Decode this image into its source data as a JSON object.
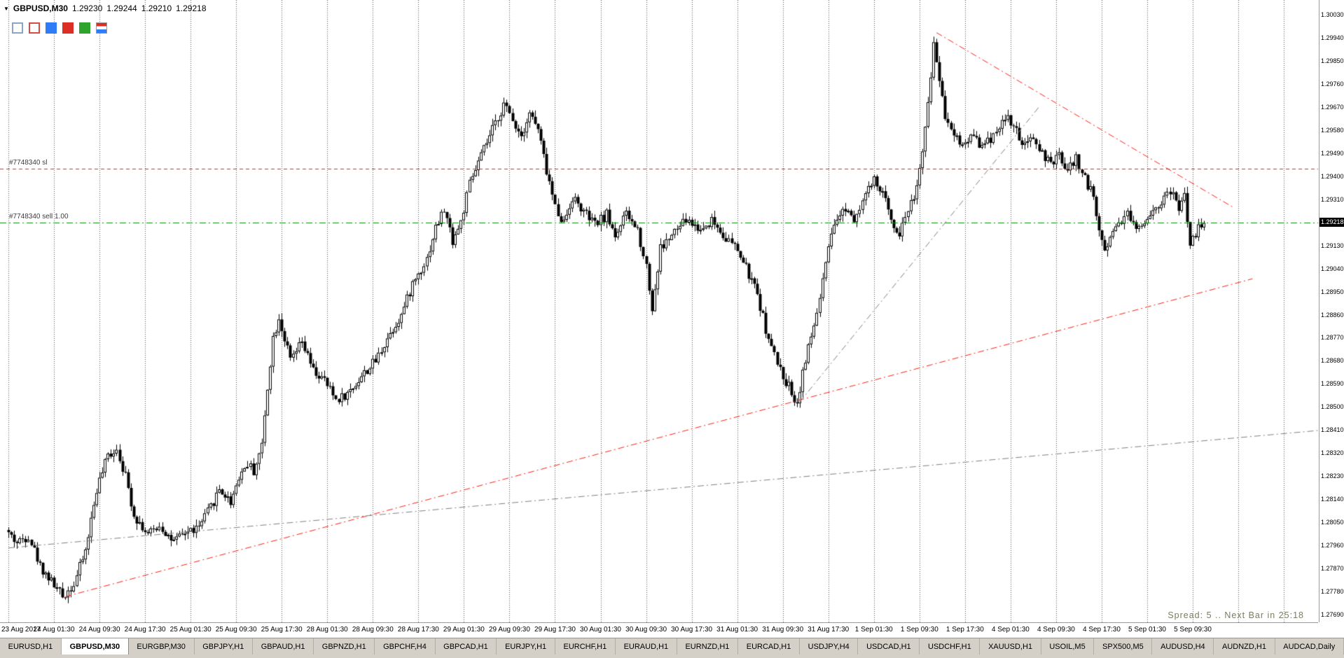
{
  "chart": {
    "menu_arrow": "▼",
    "title": {
      "symbol": "GBPUSD,M30",
      "open": "1.29230",
      "high": "1.29244",
      "low": "1.29210",
      "close": "1.29218"
    },
    "toolbar_swatches": [
      {
        "name": "white-outline-blue",
        "fill": "#ffffff",
        "border": "#8ba6c4"
      },
      {
        "name": "white-outline-red",
        "fill": "#ffffff",
        "border": "#d24d43"
      },
      {
        "name": "blue",
        "fill": "#2e7df6",
        "border": "#2e7df6"
      },
      {
        "name": "red",
        "fill": "#dd2e25",
        "border": "#dd2e25"
      },
      {
        "name": "green",
        "fill": "#2fa42c",
        "border": "#2fa42c"
      },
      {
        "name": "striped-flag",
        "stripes": [
          "#dd2e25",
          "#ffffff",
          "#2e7df6"
        ]
      }
    ]
  },
  "chart_data": {
    "type": "candlestick",
    "symbol": "GBPUSD",
    "timeframe": "M30",
    "ohlc": {
      "open": 1.2923,
      "high": 1.29244,
      "low": 1.2921,
      "close": 1.29218
    },
    "current_price": "1.29218",
    "last_close": 1.29218,
    "overlay_text": "Spread: 5 .. Next Bar in 25:18",
    "bars_per_tick": 16,
    "bar_count": 421,
    "y_axis": {
      "min": 1.2769,
      "max": 1.3003,
      "tick_step": 0.0009,
      "ticks": [
        "1.30030",
        "1.29940",
        "1.29850",
        "1.29760",
        "1.29670",
        "1.29580",
        "1.29490",
        "1.29400",
        "1.29310",
        "1.29220",
        "1.29130",
        "1.29040",
        "1.28950",
        "1.28860",
        "1.28770",
        "1.28680",
        "1.28590",
        "1.28500",
        "1.28410",
        "1.28320",
        "1.28230",
        "1.28140",
        "1.28050",
        "1.27960",
        "1.27870",
        "1.27780",
        "1.27690"
      ]
    },
    "x_ticks": [
      "23 Aug 2017",
      "24 Aug 01:30",
      "24 Aug 09:30",
      "24 Aug 17:30",
      "25 Aug 01:30",
      "25 Aug 09:30",
      "25 Aug 17:30",
      "28 Aug 01:30",
      "28 Aug 09:30",
      "28 Aug 17:30",
      "29 Aug 01:30",
      "29 Aug 09:30",
      "29 Aug 17:30",
      "30 Aug 01:30",
      "30 Aug 09:30",
      "30 Aug 17:30",
      "31 Aug 01:30",
      "31 Aug 09:30",
      "31 Aug 17:30",
      "1 Sep 01:30",
      "1 Sep 09:30",
      "1 Sep 17:30",
      "4 Sep 01:30",
      "4 Sep 09:30",
      "4 Sep 17:30",
      "5 Sep 01:30",
      "5 Sep 09:30"
    ],
    "order_lines": [
      {
        "label": "#7748340 sl",
        "price": 1.2943,
        "color": "#e02b20",
        "style": "dash"
      },
      {
        "label": "#7748340 sell 1.00",
        "price": 1.29218,
        "color": "#0a8a0a",
        "style": "dashdot"
      }
    ],
    "trendlines": [
      {
        "name": "ascending-support-red",
        "color": "#ff2015",
        "from": [
          20,
          1.2776
        ],
        "to": [
          437,
          1.29
        ],
        "style": "dashdot"
      },
      {
        "name": "descending-resistance-red",
        "color": "#ff2015",
        "from": [
          326,
          1.2996
        ],
        "to": [
          430,
          1.2928
        ],
        "style": "dashdot"
      },
      {
        "name": "ascending-gray-shallow",
        "color": "#7f7f7f",
        "from": [
          0,
          1.2795
        ],
        "to": [
          462,
          1.2841
        ],
        "style": "dashdot"
      },
      {
        "name": "ascending-gray-steep",
        "color": "#7f7f7f",
        "from": [
          278,
          1.2852
        ],
        "to": [
          362,
          1.2967
        ],
        "style": "dashdot"
      }
    ],
    "colors": {
      "bull": "#ffffff",
      "bear": "#000000",
      "outline": "#000000",
      "grid": "#555555",
      "background": "#ffffff"
    },
    "price_path_anchors": [
      [
        0,
        1.2802
      ],
      [
        4,
        1.2797
      ],
      [
        8,
        1.28
      ],
      [
        12,
        1.2788
      ],
      [
        16,
        1.2782
      ],
      [
        20,
        1.2776
      ],
      [
        24,
        1.2781
      ],
      [
        28,
        1.2794
      ],
      [
        32,
        1.2818
      ],
      [
        36,
        1.2831
      ],
      [
        39,
        1.2834
      ],
      [
        42,
        1.2823
      ],
      [
        45,
        1.2808
      ],
      [
        50,
        1.28
      ],
      [
        54,
        1.2804
      ],
      [
        59,
        1.2797
      ],
      [
        63,
        1.2801
      ],
      [
        68,
        1.2803
      ],
      [
        72,
        1.2811
      ],
      [
        75,
        1.2818
      ],
      [
        79,
        1.2813
      ],
      [
        82,
        1.2823
      ],
      [
        85,
        1.2828
      ],
      [
        87,
        1.2825
      ],
      [
        90,
        1.2835
      ],
      [
        92,
        1.2858
      ],
      [
        94,
        1.2877
      ],
      [
        96,
        1.2885
      ],
      [
        100,
        1.2868
      ],
      [
        104,
        1.2875
      ],
      [
        108,
        1.2864
      ],
      [
        112,
        1.286
      ],
      [
        116,
        1.2853
      ],
      [
        120,
        1.2855
      ],
      [
        125,
        1.2862
      ],
      [
        130,
        1.2868
      ],
      [
        134,
        1.2877
      ],
      [
        139,
        1.2886
      ],
      [
        143,
        1.2898
      ],
      [
        148,
        1.2908
      ],
      [
        151,
        1.292
      ],
      [
        154,
        1.2927
      ],
      [
        157,
        1.2915
      ],
      [
        160,
        1.2922
      ],
      [
        163,
        1.2937
      ],
      [
        167,
        1.2948
      ],
      [
        171,
        1.2958
      ],
      [
        175,
        1.2968
      ],
      [
        178,
        1.2962
      ],
      [
        181,
        1.2956
      ],
      [
        184,
        1.2965
      ],
      [
        187,
        1.2958
      ],
      [
        190,
        1.2942
      ],
      [
        193,
        1.2928
      ],
      [
        196,
        1.2922
      ],
      [
        199,
        1.2932
      ],
      [
        203,
        1.2926
      ],
      [
        207,
        1.2921
      ],
      [
        211,
        1.2925
      ],
      [
        214,
        1.2917
      ],
      [
        218,
        1.2925
      ],
      [
        222,
        1.2919
      ],
      [
        225,
        1.2905
      ],
      [
        227,
        1.2888
      ],
      [
        230,
        1.2912
      ],
      [
        235,
        1.2918
      ],
      [
        239,
        1.2923
      ],
      [
        244,
        1.2919
      ],
      [
        248,
        1.2923
      ],
      [
        253,
        1.2916
      ],
      [
        257,
        1.2911
      ],
      [
        260,
        1.2904
      ],
      [
        264,
        1.2894
      ],
      [
        268,
        1.2876
      ],
      [
        272,
        1.2864
      ],
      [
        276,
        1.2856
      ],
      [
        278,
        1.2851
      ],
      [
        280,
        1.2864
      ],
      [
        283,
        1.2877
      ],
      [
        286,
        1.2892
      ],
      [
        289,
        1.2912
      ],
      [
        292,
        1.2923
      ],
      [
        295,
        1.2928
      ],
      [
        298,
        1.2924
      ],
      [
        302,
        1.2933
      ],
      [
        305,
        1.2938
      ],
      [
        308,
        1.2933
      ],
      [
        311,
        1.2924
      ],
      [
        314,
        1.2917
      ],
      [
        316,
        1.2925
      ],
      [
        319,
        1.2932
      ],
      [
        322,
        1.2948
      ],
      [
        324,
        1.2968
      ],
      [
        326,
        1.2992
      ],
      [
        328,
        1.2978
      ],
      [
        330,
        1.2964
      ],
      [
        333,
        1.2957
      ],
      [
        336,
        1.2952
      ],
      [
        340,
        1.2957
      ],
      [
        343,
        1.2951
      ],
      [
        346,
        1.2955
      ],
      [
        349,
        1.296
      ],
      [
        352,
        1.2963
      ],
      [
        355,
        1.2957
      ],
      [
        358,
        1.2951
      ],
      [
        361,
        1.2955
      ],
      [
        364,
        1.2949
      ],
      [
        367,
        1.2944
      ],
      [
        370,
        1.2948
      ],
      [
        373,
        1.2942
      ],
      [
        376,
        1.2947
      ],
      [
        379,
        1.2939
      ],
      [
        382,
        1.2932
      ],
      [
        384,
        1.2919
      ],
      [
        386,
        1.2911
      ],
      [
        388,
        1.2917
      ],
      [
        391,
        1.2922
      ],
      [
        394,
        1.2926
      ],
      [
        397,
        1.2919
      ],
      [
        400,
        1.2923
      ],
      [
        403,
        1.2927
      ],
      [
        406,
        1.293
      ],
      [
        409,
        1.2934
      ],
      [
        412,
        1.2928
      ],
      [
        414,
        1.2933
      ],
      [
        416,
        1.2912
      ],
      [
        418,
        1.2918
      ],
      [
        420,
        1.29218
      ]
    ]
  },
  "tabs": [
    {
      "label": "EURUSD,H1"
    },
    {
      "label": "GBPUSD,M30",
      "active": true
    },
    {
      "label": "EURGBP,M30"
    },
    {
      "label": "GBPJPY,H1"
    },
    {
      "label": "GBPAUD,H1"
    },
    {
      "label": "GBPNZD,H1"
    },
    {
      "label": "GBPCHF,H4"
    },
    {
      "label": "GBPCAD,H1"
    },
    {
      "label": "EURJPY,H1"
    },
    {
      "label": "EURCHF,H1"
    },
    {
      "label": "EURAUD,H1"
    },
    {
      "label": "EURNZD,H1"
    },
    {
      "label": "EURCAD,H1"
    },
    {
      "label": "USDJPY,H4"
    },
    {
      "label": "USDCAD,H1"
    },
    {
      "label": "USDCHF,H1"
    },
    {
      "label": "XAUUSD,H1"
    },
    {
      "label": "USOIL,M5"
    },
    {
      "label": "SPX500,M5"
    },
    {
      "label": "AUDUSD,H4"
    },
    {
      "label": "AUDNZD,H1"
    },
    {
      "label": "AUDCAD,Daily"
    }
  ]
}
